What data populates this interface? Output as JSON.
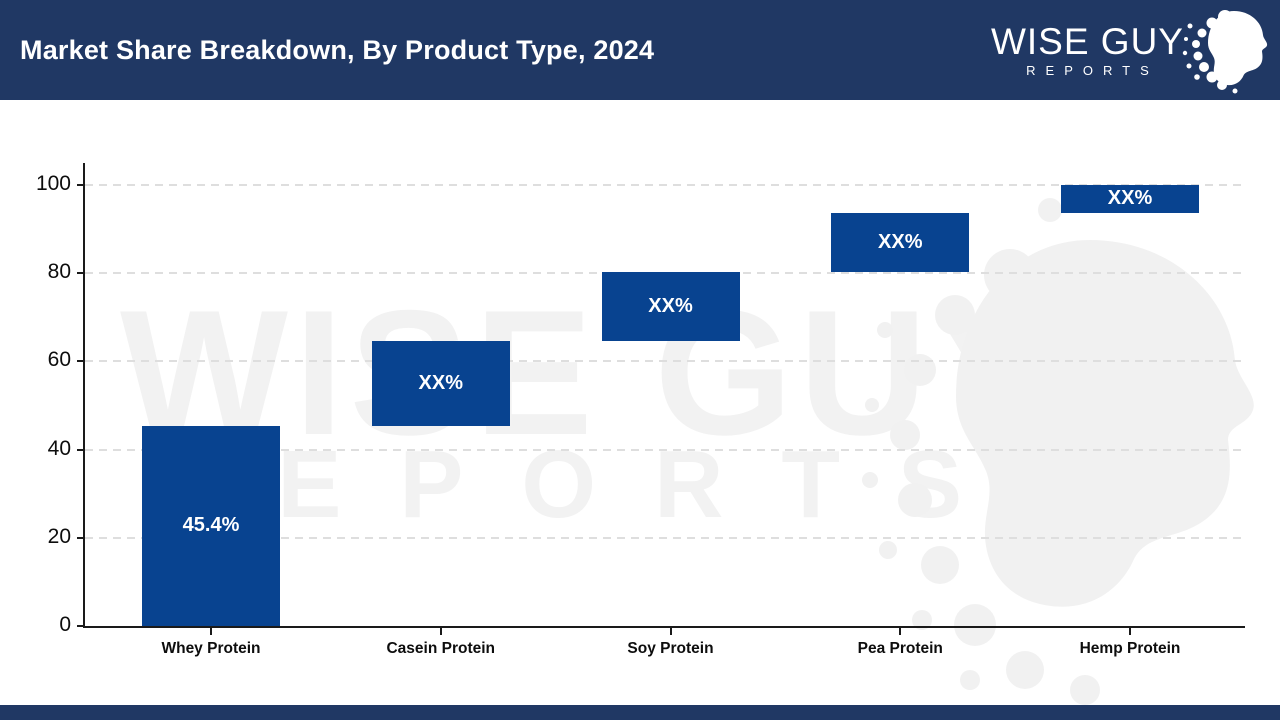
{
  "header": {
    "title": "Market Share Breakdown, By Product Type, 2024",
    "logo": {
      "line1": "WISE GUY",
      "line2": "REPORTS"
    }
  },
  "watermark": {
    "line1": "WISE GUY",
    "line2": "REPORTS"
  },
  "colors": {
    "header_navy": "#203864",
    "bar_blue": "#084390",
    "axis_black": "#1a1a1a",
    "grid_gray": "#dedede",
    "label_white": "#ffffff",
    "watermark_gray": "#f2f2f2"
  },
  "chart_data": {
    "type": "bar",
    "subtype": "waterfall",
    "title": "Market Share Breakdown, By Product Type, 2024",
    "categories": [
      "Whey Protein",
      "Casein Protein",
      "Soy Protein",
      "Pea Protein",
      "Hemp Protein"
    ],
    "segments": [
      {
        "category": "Whey Protein",
        "start": 0,
        "end": 45.4,
        "label": "45.4%"
      },
      {
        "category": "Casein Protein",
        "start": 45.4,
        "end": 64.6,
        "label": "XX%"
      },
      {
        "category": "Soy Protein",
        "start": 64.6,
        "end": 80.3,
        "label": "XX%"
      },
      {
        "category": "Pea Protein",
        "start": 80.3,
        "end": 93.7,
        "label": "XX%"
      },
      {
        "category": "Hemp Protein",
        "start": 93.7,
        "end": 100,
        "label": "XX%"
      }
    ],
    "yticks": [
      0,
      20,
      40,
      60,
      80,
      100
    ],
    "ylim": [
      0,
      105
    ],
    "xlabel": "",
    "ylabel": "",
    "grid": "dashed-horizontal",
    "legend": "none"
  }
}
